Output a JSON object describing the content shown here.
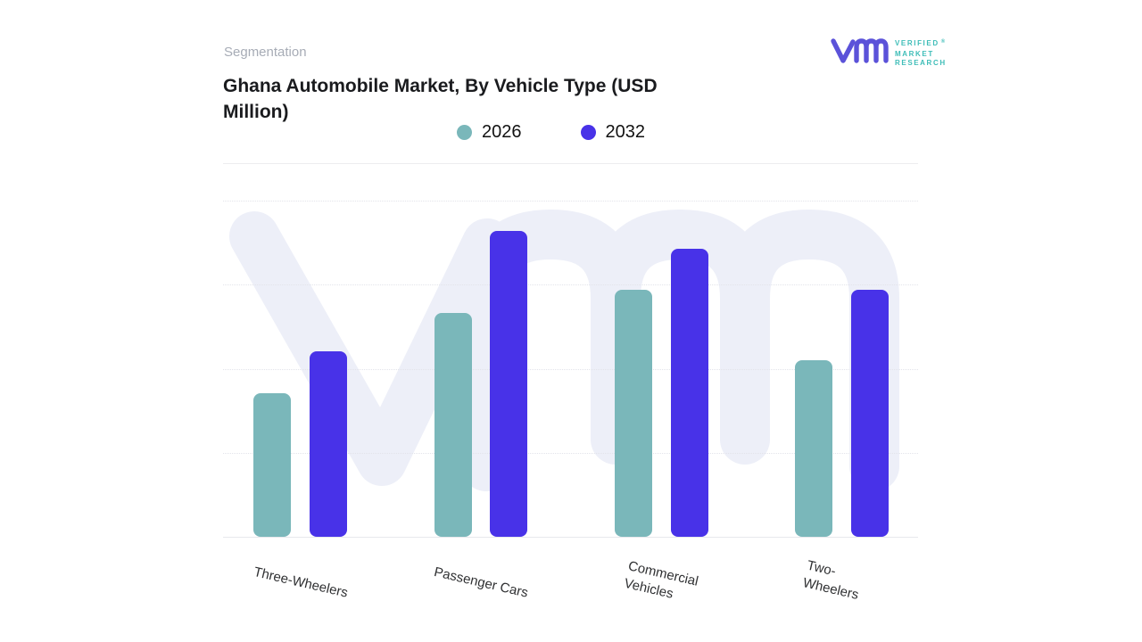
{
  "header": {
    "eyebrow": "Segmentation",
    "title": "Ghana Automobile Market, By Vehicle Type (USD Million)"
  },
  "logo": {
    "mark": "vm-monogram",
    "lines": [
      "VERIFIED",
      "MARKET",
      "RESEARCH"
    ],
    "registered": "®",
    "mark_color": "#5B52D9",
    "text_color": "#3EBDB8"
  },
  "chart_data": {
    "type": "bar",
    "title": "Ghana Automobile Market, By Vehicle Type (USD Million)",
    "unit": "USD Million",
    "categories": [
      "Three-Wheelers",
      "Passenger Cars",
      "Commercial Vehicles",
      "Two-Wheelers"
    ],
    "x_display_labels": [
      "Three-Wheelers",
      "Passenger Cars",
      "Commercial\nVehicles",
      "Two-Wheelers"
    ],
    "series": [
      {
        "name": "2026",
        "color": "#7AB7BA",
        "values": [
          42.6,
          66.7,
          73.5,
          52.4
        ]
      },
      {
        "name": "2032",
        "color": "#4832E8",
        "values": [
          55.3,
          90.9,
          85.6,
          73.4
        ]
      }
    ],
    "ylim": [
      0,
      100
    ],
    "y_axis_labels_visible": false,
    "grid": "horizontal-dotted",
    "legend_position": "top-center",
    "watermark": "vm",
    "colors": {
      "grid": "#e3e4ea",
      "baseline": "#e7e8ec",
      "watermark": "#EDEFF8"
    }
  }
}
